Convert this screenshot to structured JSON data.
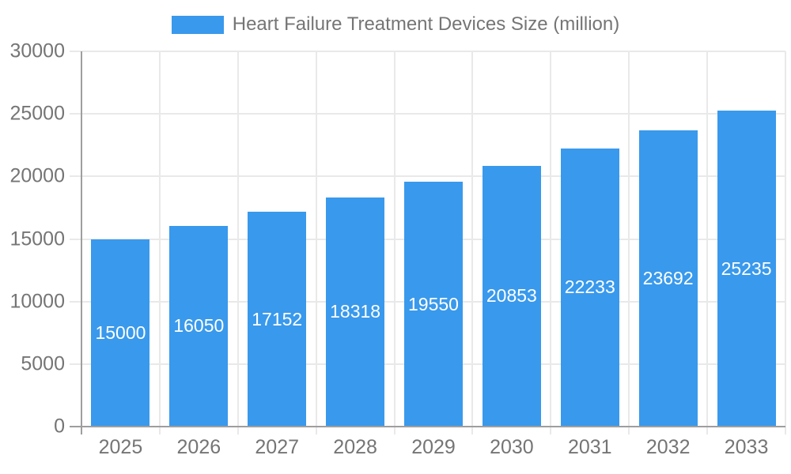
{
  "chart_data": {
    "type": "bar",
    "title": "Heart Failure Treatment Devices Size (million)",
    "categories": [
      "2025",
      "2026",
      "2027",
      "2028",
      "2029",
      "2030",
      "2031",
      "2032",
      "2033"
    ],
    "values": [
      15000,
      16050,
      17152,
      18318,
      19550,
      20853,
      22233,
      23692,
      25235
    ],
    "xlabel": "",
    "ylabel": "",
    "ylim": [
      0,
      30000
    ],
    "yticks": [
      0,
      5000,
      10000,
      15000,
      20000,
      25000,
      30000
    ],
    "grid": true,
    "legend_position": "top",
    "value_labels": {
      "position": "inside-center",
      "color": "#FFFFFF"
    }
  },
  "colors": {
    "bar": "#3999EC",
    "axis_line": "#9E9E9E",
    "gridline": "#E9E9E9",
    "tick_text": "#757575",
    "bar_value_text": "#FFFFFF",
    "background": "#FFFFFF"
  }
}
